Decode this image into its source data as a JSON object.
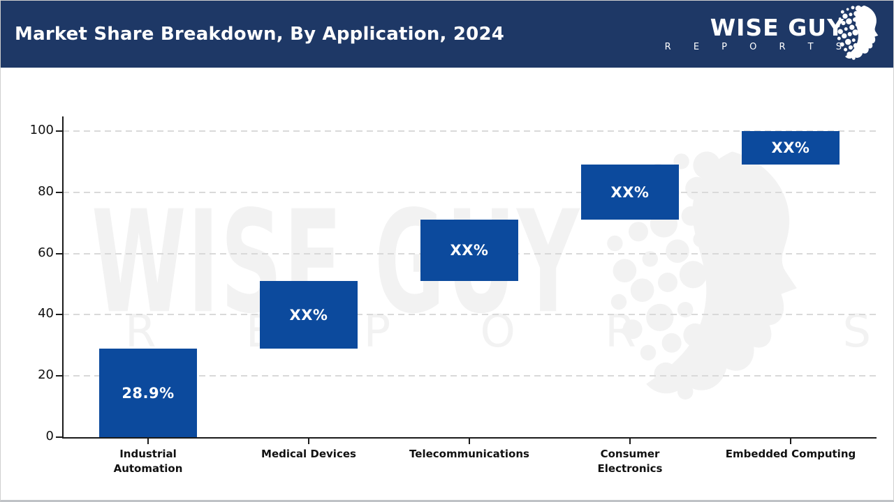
{
  "header": {
    "title": "Market Share Breakdown, By Application, 2024",
    "logo": {
      "line1": "WISE GUY",
      "line2": "R E P O R T S"
    }
  },
  "watermark": {
    "line1": "WISE GUY",
    "line2": "R E P O R T S"
  },
  "colors": {
    "header_background": "#1e3866",
    "bar_fill": "#0c4a9d",
    "bar_label": "#ffffff",
    "gridline": "#d9d9d9",
    "axis": "#1a1a1a",
    "watermark": "#f2f2f2"
  },
  "chart_data": {
    "type": "bar",
    "subtype": "waterfall",
    "title": "Market Share Breakdown, By Application, 2024",
    "xlabel": "",
    "ylabel": "",
    "ylim": [
      0,
      100
    ],
    "yticks": [
      0,
      20,
      40,
      60,
      80,
      100
    ],
    "grid": "horizontal-dashed",
    "legend": "none",
    "categories": [
      [
        "Industrial",
        "Automation"
      ],
      [
        "Medical Devices"
      ],
      [
        "Telecommunications"
      ],
      [
        "Consumer",
        "Electronics"
      ],
      [
        "Embedded Computing"
      ]
    ],
    "segments": [
      {
        "name": "Industrial Automation",
        "label": "28.9%",
        "start": 0,
        "end": 28.9,
        "size": 28.9
      },
      {
        "name": "Medical Devices",
        "label": "XX%",
        "start": 28.9,
        "end": 51.0,
        "size": 22.1
      },
      {
        "name": "Telecommunications",
        "label": "XX%",
        "start": 51.0,
        "end": 71.1,
        "size": 20.1
      },
      {
        "name": "Consumer Electronics",
        "label": "XX%",
        "start": 71.1,
        "end": 89.0,
        "size": 17.9
      },
      {
        "name": "Embedded Computing",
        "label": "XX%",
        "start": 89.0,
        "end": 100.0,
        "size": 11.0
      }
    ]
  }
}
